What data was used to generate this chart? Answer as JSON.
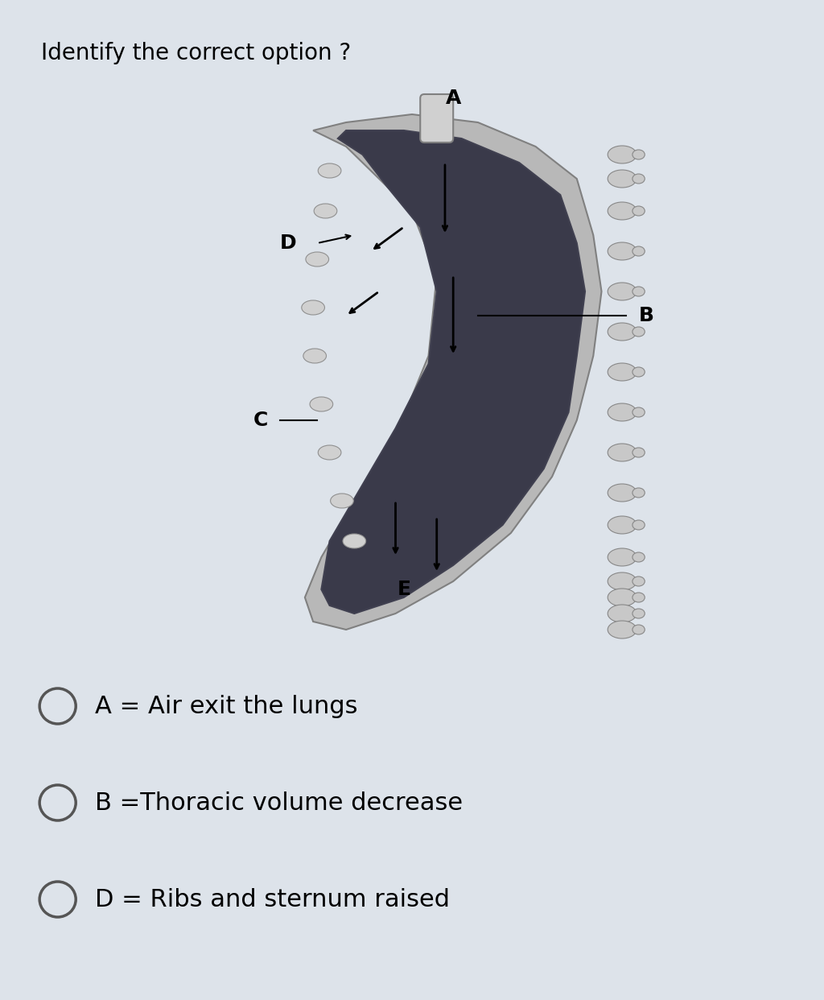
{
  "title": "Identify the correct option ?",
  "title_fontsize": 20,
  "background_color": "#dde3ea",
  "options": [
    "A = Air exit the lungs",
    "B =Thoracic volume decrease",
    "D = Ribs and sternum raised"
  ],
  "option_fontsize": 22,
  "labels": [
    "A",
    "B",
    "C",
    "D",
    "E"
  ],
  "fig_width": 10.24,
  "fig_height": 12.42
}
